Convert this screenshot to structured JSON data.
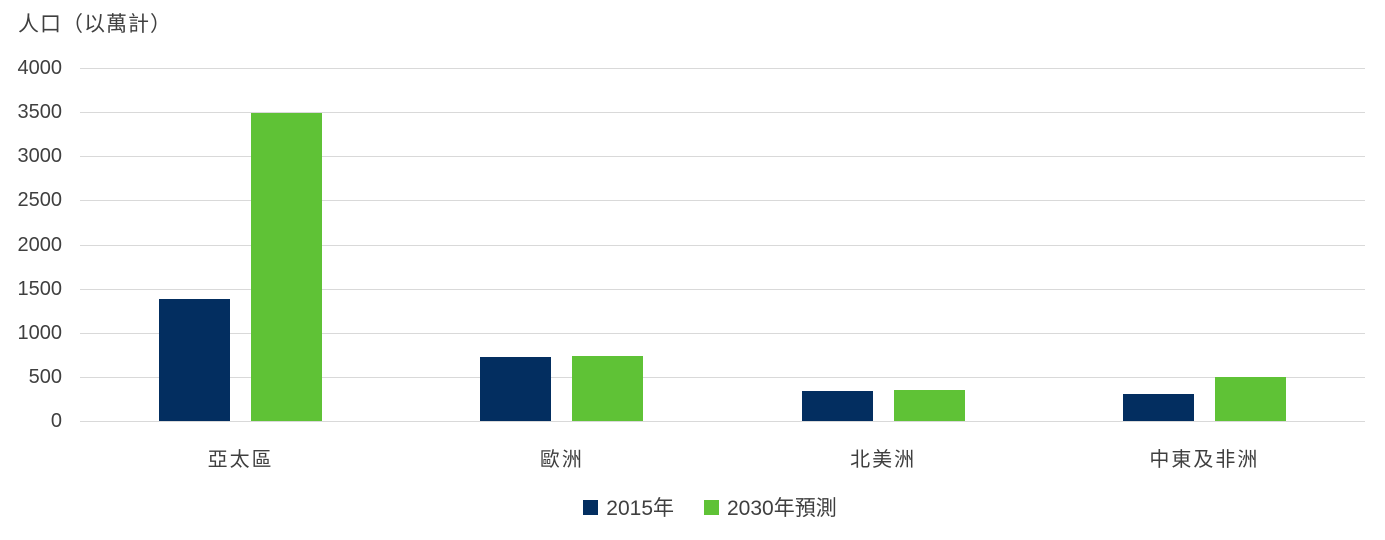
{
  "chart_data": {
    "type": "bar",
    "title": "人口（以萬計）",
    "categories": [
      "亞太區",
      "歐洲",
      "北美洲",
      "中東及非洲"
    ],
    "series": [
      {
        "name": "2015年",
        "color": "#032e60",
        "values": [
          1380,
          724,
          335,
          306
        ]
      },
      {
        "name": "2030年預測",
        "color": "#5fc236",
        "values": [
          3492,
          733,
          354,
          497
        ]
      }
    ],
    "ylim": [
      0,
      4000
    ],
    "yticks": [
      0,
      500,
      1000,
      1500,
      2000,
      2500,
      3000,
      3500,
      4000
    ],
    "xlabel": "",
    "ylabel": "人口（以萬計）",
    "grid": true,
    "legend_position": "bottom",
    "axis_text_color": "#3f3f3f",
    "gridline_color": "#d9d9d9",
    "background_color": "#ffffff"
  }
}
